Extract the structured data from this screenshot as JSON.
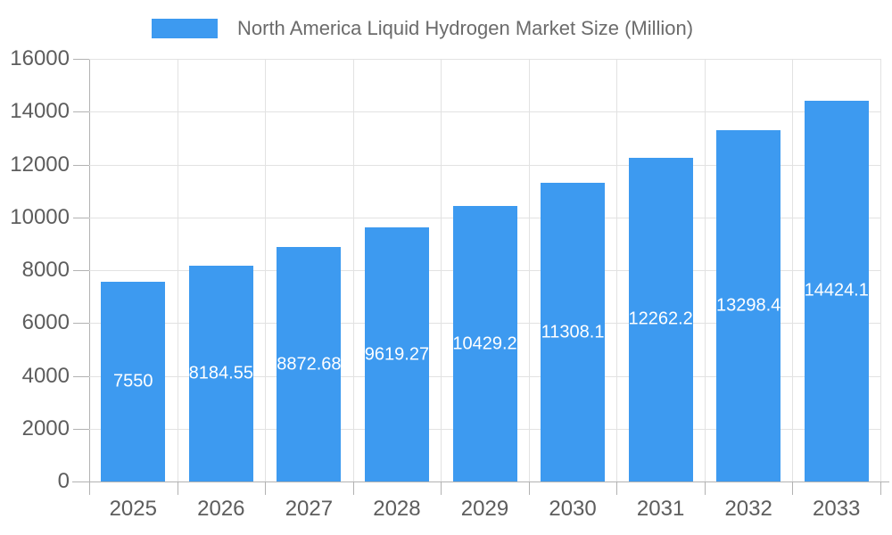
{
  "colors": {
    "accent": "#3D9AF0",
    "background": "#ffffff",
    "grid": "#e2e2e2",
    "axis_line": "#b2b2b2",
    "axis_text": "#5d5d5d",
    "legend_text": "#6b6b6b",
    "bar_label_text": "#ffffff"
  },
  "legend": {
    "label": "North America Liquid Hydrogen Market Size (Million)",
    "swatch_color": "#3D9AF0"
  },
  "chart_data": {
    "type": "bar",
    "title": "North America Liquid Hydrogen Market Size (Million)",
    "categories": [
      "2025",
      "2026",
      "2027",
      "2028",
      "2029",
      "2030",
      "2031",
      "2032",
      "2033"
    ],
    "values": [
      7550,
      8184.55,
      8872.68,
      9619.27,
      10429.2,
      11308.1,
      12262.2,
      13298.4,
      14424.1
    ],
    "value_labels": [
      "7550",
      "8184.55",
      "8872.68",
      "9619.27",
      "10429.2",
      "11308.1",
      "12262.2",
      "13298.4",
      "14424.1"
    ],
    "xlabel": "",
    "ylabel": "",
    "ylim": [
      0,
      16000
    ],
    "y_ticks": [
      0,
      2000,
      4000,
      6000,
      8000,
      10000,
      12000,
      14000,
      16000
    ],
    "grid": true,
    "legend_position": "top",
    "bar_labels_inside": true,
    "series_color": "#3D9AF0"
  }
}
